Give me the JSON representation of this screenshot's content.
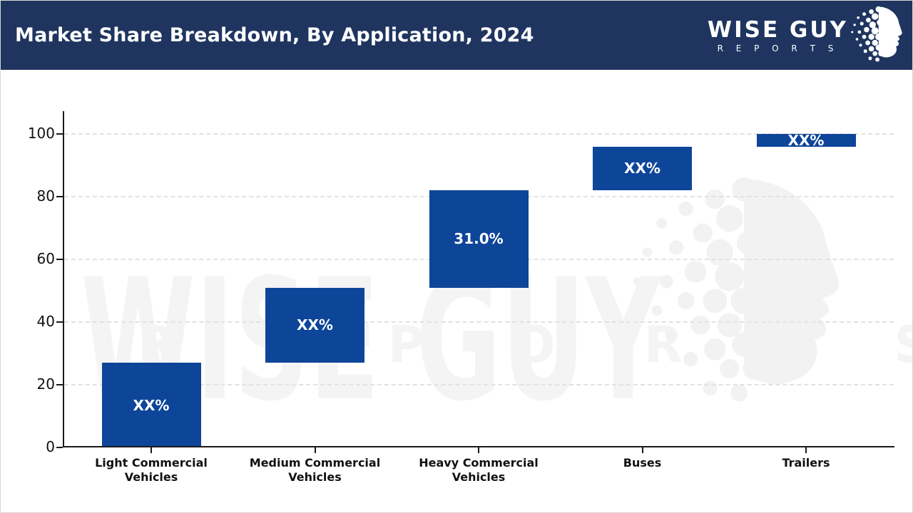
{
  "header": {
    "title": "Market Share Breakdown, By Application, 2024",
    "logo": {
      "brand": "WISE GUY",
      "sub": "R E P O R T S"
    }
  },
  "watermark": {
    "brand": "WISE GUY",
    "sub": "R E P O R T S"
  },
  "colors": {
    "header_bg": "#1f3560",
    "bar": "#0d4599",
    "bar_label": "#ffffff",
    "overflow_label": "#1c3055",
    "grid": "#e2e2e2",
    "axis": "#1a1a1a",
    "watermark": "#f3f3f3"
  },
  "chart_data": {
    "type": "bar",
    "subtype": "floating-waterfall",
    "title": "Market Share Breakdown, By Application, 2024",
    "categories": [
      "Light Commercial Vehicles",
      "Medium Commercial Vehicles",
      "Heavy Commercial Vehicles",
      "Buses",
      "Trailers"
    ],
    "series": [
      {
        "name": "Market share (%)",
        "values": [
          27,
          24,
          31,
          14,
          4
        ]
      }
    ],
    "segments": [
      {
        "category": "Light Commercial Vehicles",
        "start": 0,
        "end": 27,
        "label": "XX%"
      },
      {
        "category": "Medium Commercial Vehicles",
        "start": 27,
        "end": 51,
        "label": "XX%"
      },
      {
        "category": "Heavy Commercial Vehicles",
        "start": 51,
        "end": 82,
        "label": "31.0%"
      },
      {
        "category": "Buses",
        "start": 82,
        "end": 96,
        "label": "XX%"
      },
      {
        "category": "Trailers",
        "start": 96,
        "end": 100,
        "label": "XX%"
      }
    ],
    "bar_labels": [
      "XX%",
      "XX%",
      "31.0%",
      "XX%",
      "XX%"
    ],
    "xlabel": "",
    "ylabel": "",
    "ylim": [
      0,
      100
    ],
    "yticks": [
      0,
      20,
      40,
      60,
      80,
      100
    ],
    "grid": "horizontal-dashed",
    "legend": "none"
  }
}
